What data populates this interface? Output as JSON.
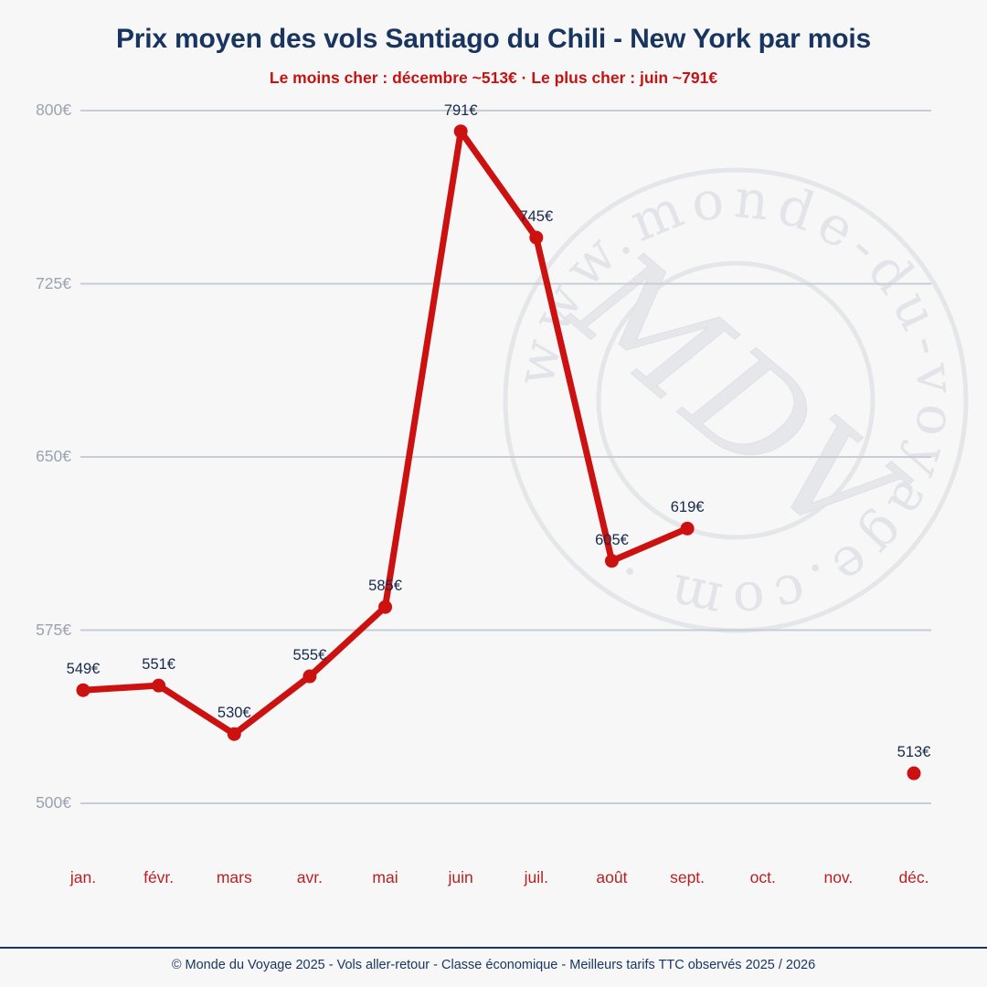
{
  "header": {
    "title": "Prix moyen des vols Santiago du Chili - New York par mois",
    "subtitle": "Le moins cher : décembre ~513€ · Le plus cher : juin ~791€"
  },
  "chart_data": {
    "type": "line",
    "title": "Prix moyen des vols Santiago du Chili - New York par mois",
    "categories": [
      "jan.",
      "févr.",
      "mars",
      "avr.",
      "mai",
      "juin",
      "juil.",
      "août",
      "sept.",
      "oct.",
      "nov.",
      "déc."
    ],
    "values": [
      549,
      551,
      530,
      555,
      585,
      791,
      745,
      605,
      619,
      null,
      null,
      513
    ],
    "value_labels": [
      "549€",
      "551€",
      "530€",
      "555€",
      "585€",
      "791€",
      "745€",
      "605€",
      "619€",
      null,
      null,
      "513€"
    ],
    "unit": "€",
    "ylim": [
      500,
      800
    ],
    "y_ticks": [
      500,
      575,
      650,
      725,
      800
    ],
    "y_tick_labels": [
      "500€",
      "575€",
      "650€",
      "725€",
      "800€"
    ],
    "grid": true,
    "legend": "none",
    "colors": {
      "line": "#cc1111",
      "point": "#cc1111",
      "value_label": "#172a4d",
      "x_tick": "#b92121",
      "y_tick": "#9aa3b0",
      "gridline": "#c7ccd5"
    }
  },
  "watermark": {
    "ring_text": "www.monde-du-voyage.com ·",
    "center_text": "MDV"
  },
  "footer": {
    "text": "© Monde du Voyage 2025 - Vols aller-retour - Classe économique - Meilleurs tarifs TTC observés 2025 / 2026"
  },
  "theme": {
    "background": "#f7f7f8",
    "navy": "#17355f",
    "red": "#c41313"
  }
}
